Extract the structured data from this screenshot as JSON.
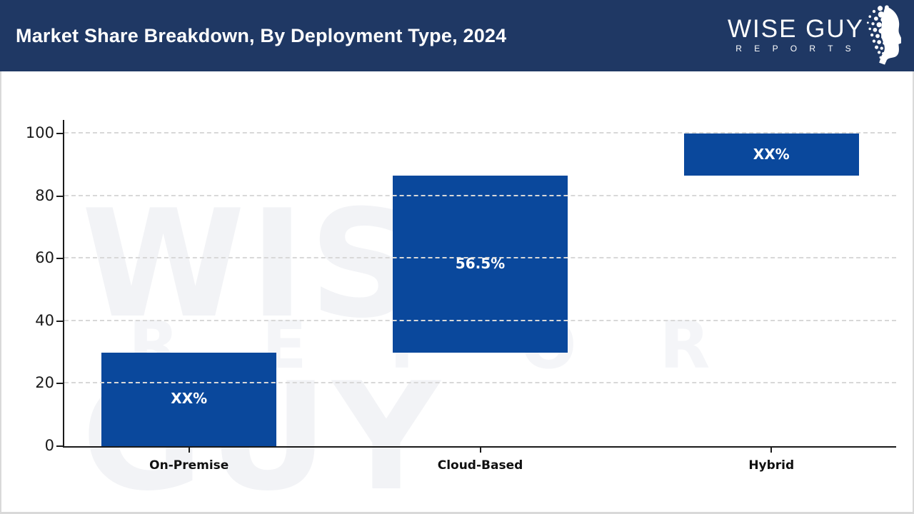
{
  "header": {
    "title": "Market Share Breakdown, By Deployment Type, 2024",
    "bg_color": "#1f3864",
    "logo": {
      "name": "WISE GUY",
      "sub": "R E P O R T S"
    }
  },
  "watermark": {
    "big": "WISE GUY",
    "sub": "R E P O R T S"
  },
  "chart_data": {
    "type": "bar",
    "variant": "floating-waterfall-segments",
    "title": "Market Share Breakdown, By Deployment Type, 2024",
    "categories": [
      "On-Premise",
      "Cloud-Based",
      "Hybrid"
    ],
    "segments": [
      {
        "category": "On-Premise",
        "start": 0,
        "end": 30,
        "label": "XX%"
      },
      {
        "category": "Cloud-Based",
        "start": 30,
        "end": 86.5,
        "label": "56.5%"
      },
      {
        "category": "Hybrid",
        "start": 86.5,
        "end": 100,
        "label": "XX%"
      }
    ],
    "ylim": [
      0,
      100
    ],
    "yticks": [
      0,
      20,
      40,
      60,
      80,
      100
    ],
    "xlabel": "",
    "ylabel": "",
    "legend": "none",
    "grid": {
      "horizontal": true,
      "style": "dashed",
      "color": "#d8d8d8",
      "drawn_over_bars": true
    },
    "bar_color": "#0a489c",
    "bar_label_color": "#ffffff",
    "axis_color": "#1a1a1a",
    "bar_centers_pct": [
      15,
      50,
      85
    ],
    "bar_width_pct": 21
  }
}
